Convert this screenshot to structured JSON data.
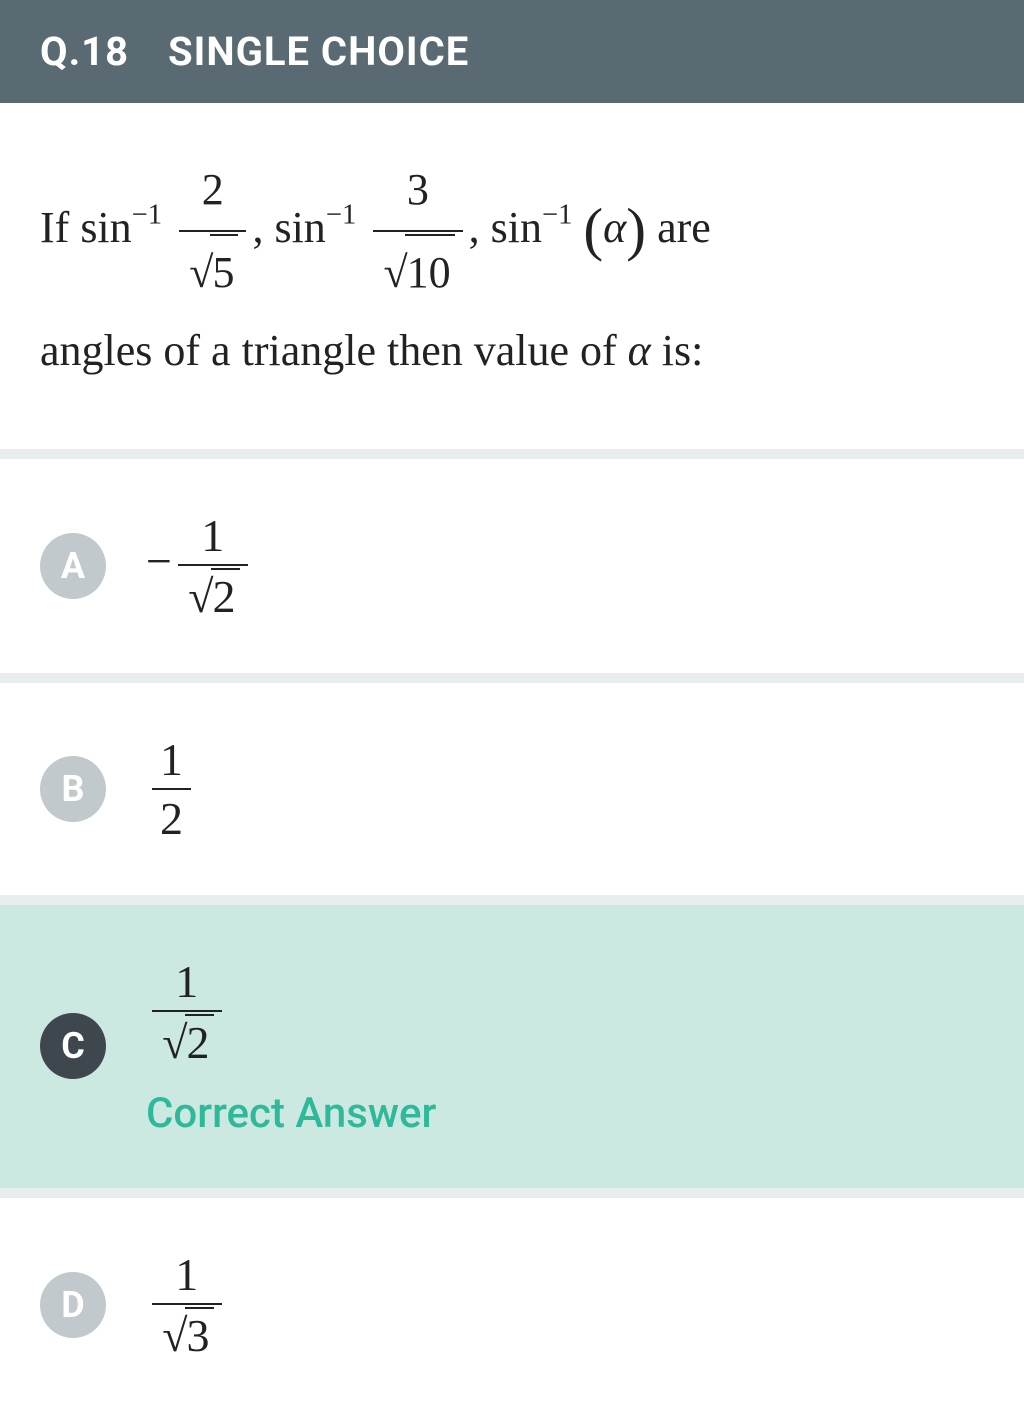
{
  "colors": {
    "header_bg": "#5a6a72",
    "header_text": "#ffffff",
    "page_bg": "#e8eef0",
    "card_bg": "#ffffff",
    "correct_bg": "#cce9e1",
    "inactive_letter_bg": "#c2c9cc",
    "active_letter_bg": "#3d474d",
    "letter_text": "#ffffff",
    "text": "#222222",
    "correct_label": "#2fb89a"
  },
  "typography": {
    "header_fontsize": 40,
    "question_fontsize": 44,
    "option_fontsize": 46,
    "correct_label_fontsize": 42
  },
  "header": {
    "question_number": "Q.18",
    "type_label": "SINGLE CHOICE"
  },
  "question": {
    "prefix": "If ",
    "sin_inv": "sin",
    "exp": "−1",
    "term1_num": "2",
    "term1_rad": "5",
    "sep1": ", ",
    "term2_num": "3",
    "term2_rad": "10",
    "sep2": ", ",
    "alpha": "α",
    "suffix1": " are",
    "line2": "angles of a triangle then value of ",
    "alpha2": "α",
    "line2_end": " is:"
  },
  "options": [
    {
      "letter": "A",
      "state": "inactive",
      "is_correct": false,
      "prefix": "−",
      "num": "1",
      "rad": "2",
      "is_fraction_sqrt": true
    },
    {
      "letter": "B",
      "state": "inactive",
      "is_correct": false,
      "num": "1",
      "den": "2",
      "is_plain_fraction": true
    },
    {
      "letter": "C",
      "state": "active",
      "is_correct": true,
      "num": "1",
      "rad": "2",
      "is_fraction_sqrt": true,
      "correct_label": "Correct Answer"
    },
    {
      "letter": "D",
      "state": "inactive",
      "is_correct": false,
      "num": "1",
      "rad": "3",
      "is_fraction_sqrt": true
    }
  ]
}
